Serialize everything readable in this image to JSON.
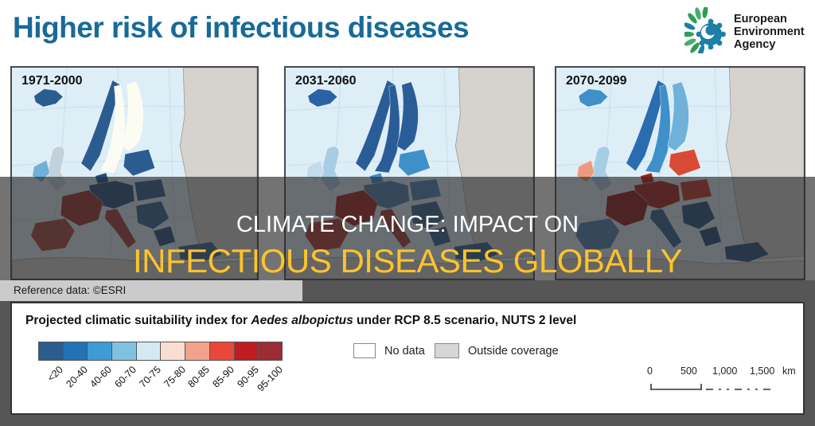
{
  "header": {
    "title": "Higher risk of infectious diseases",
    "title_color": "#176a99",
    "logo": {
      "lines": [
        "European",
        "Environment",
        "Agency"
      ],
      "green": "#2f9e54",
      "teal": "#1d7fa5"
    }
  },
  "banner": {
    "line1": "CLIMATE CHANGE: IMPACT ON",
    "line2": "INFECTIOUS DISEASES GLOBALLY",
    "line1_color": "#ffffff",
    "line2_color": "#fdc32a"
  },
  "reference": {
    "label": "Reference data: ©ESRI"
  },
  "maps": {
    "sea": "#ddeef7",
    "graticule": "#c6dfee",
    "outside": "#d6d3cf",
    "outside_stroke": "#9a9a9a",
    "panels": [
      {
        "period": "1971-2000",
        "regions": {
          "iceland": "#2b5c8f",
          "norway": "#2b5c8f",
          "sweden": "#fcfcf3",
          "finland": "#fcfcf3",
          "baltics": "#2b5c8f",
          "denmark": "#24507e",
          "uk": "#c2d2da",
          "ireland": "#6fb1d8",
          "central": "#24507e",
          "poland": "#2b5c8f",
          "france": "#9c2f27",
          "iberia": "#a8453a",
          "italy": "#a03a30",
          "balkans": "#2e618f",
          "greece": "#24507e",
          "anatolia": "#35618f"
        }
      },
      {
        "period": "2031-2060",
        "regions": {
          "iceland": "#2a63a5",
          "norway": "#2a5d97",
          "sweden": "#2a5d97",
          "finland": "#2a5d97",
          "baltics": "#3f8fc9",
          "denmark": "#3f8fc9",
          "uk": "#a7cde5",
          "ireland": "#c2dcec",
          "central": "#4a7fae",
          "poland": "#4684b8",
          "france": "#a31f1c",
          "iberia": "#b03a30",
          "italy": "#a83a30",
          "balkans": "#35618f",
          "greece": "#2e5f8f",
          "anatolia": "#2e5f8f"
        }
      },
      {
        "period": "2070-2099",
        "regions": {
          "iceland": "#3f8fc9",
          "norway": "#2a6cb0",
          "sweden": "#3f8fc9",
          "finland": "#6fb1d8",
          "baltics": "#d94a35",
          "denmark": "#a81e1a",
          "uk": "#a7cde5",
          "ireland": "#ef9a80",
          "central": "#a81e1a",
          "poland": "#c03326",
          "france": "#8f1713",
          "iberia": "#4a7fae",
          "italy": "#2e5f8f",
          "balkans": "#24507e",
          "greece": "#1f4b7a",
          "anatolia": "#24507e"
        }
      }
    ]
  },
  "legend": {
    "title_prefix": "Projected climatic suitability index for ",
    "title_species": "Aedes albopictus",
    "title_suffix": " under RCP 8.5 scenario, NUTS 2 level",
    "classes": [
      {
        "label": "<20",
        "color": "#2b5c8f"
      },
      {
        "label": "20-40",
        "color": "#2173b6"
      },
      {
        "label": "40-60",
        "color": "#3e9bd4"
      },
      {
        "label": "60-70",
        "color": "#7fc1e0"
      },
      {
        "label": "70-75",
        "color": "#d3eaf4"
      },
      {
        "label": "75-80",
        "color": "#f9ddd1"
      },
      {
        "label": "80-85",
        "color": "#f1a28c"
      },
      {
        "label": "85-90",
        "color": "#e8483a"
      },
      {
        "label": "90-95",
        "color": "#c01c20"
      },
      {
        "label": "95-100",
        "color": "#9c2b33"
      }
    ],
    "no_data": {
      "label": "No data",
      "color": "#ffffff"
    },
    "outside_coverage": {
      "label": "Outside coverage",
      "color": "#d6d6d4"
    },
    "scale_bar": {
      "ticks": [
        "0",
        "500",
        "1,000",
        "1,500"
      ],
      "unit": "km"
    }
  }
}
